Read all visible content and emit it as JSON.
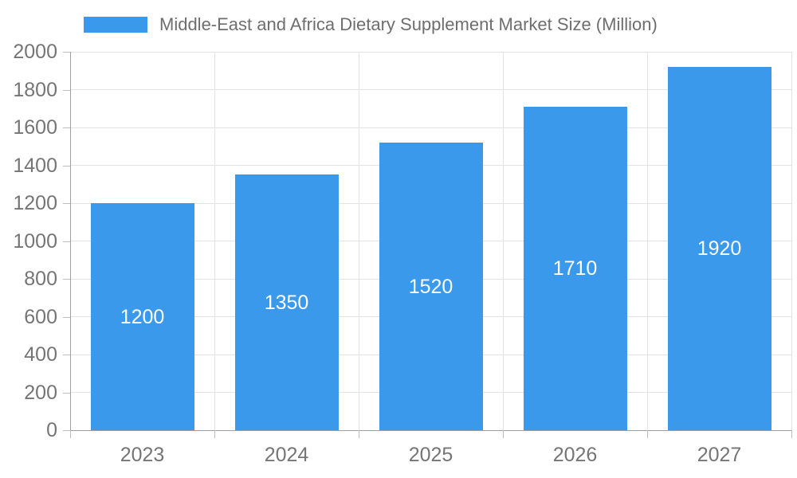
{
  "legend": {
    "label": "Middle-East and Africa Dietary Supplement Market Size (Million)"
  },
  "chart_data": {
    "type": "bar",
    "title": "",
    "categories": [
      "2023",
      "2024",
      "2025",
      "2026",
      "2027"
    ],
    "values": [
      1200,
      1350,
      1520,
      1710,
      1920
    ],
    "series": [
      {
        "name": "Middle-East and Africa Dietary Supplement Market Size (Million)",
        "values": [
          1200,
          1350,
          1520,
          1710,
          1920
        ]
      }
    ],
    "xlabel": "",
    "ylabel": "",
    "ylim": [
      0,
      2000
    ],
    "ytick_step": 200,
    "yticks": [
      0,
      200,
      400,
      600,
      800,
      1000,
      1200,
      1400,
      1600,
      1800,
      2000
    ],
    "grid": true,
    "legend_position": "top",
    "bar_value_labels_visible": true
  },
  "colors": {
    "bar": "#3B99EC",
    "bar_label": "#FFFFFF",
    "grid_line": "#E3E3E3",
    "axis_line": "#A0A0A0",
    "tick_mark": "#BDBDBD",
    "axis_text": "#757575",
    "legend_text": "#6E6E6E",
    "background": "#FFFFFF"
  }
}
